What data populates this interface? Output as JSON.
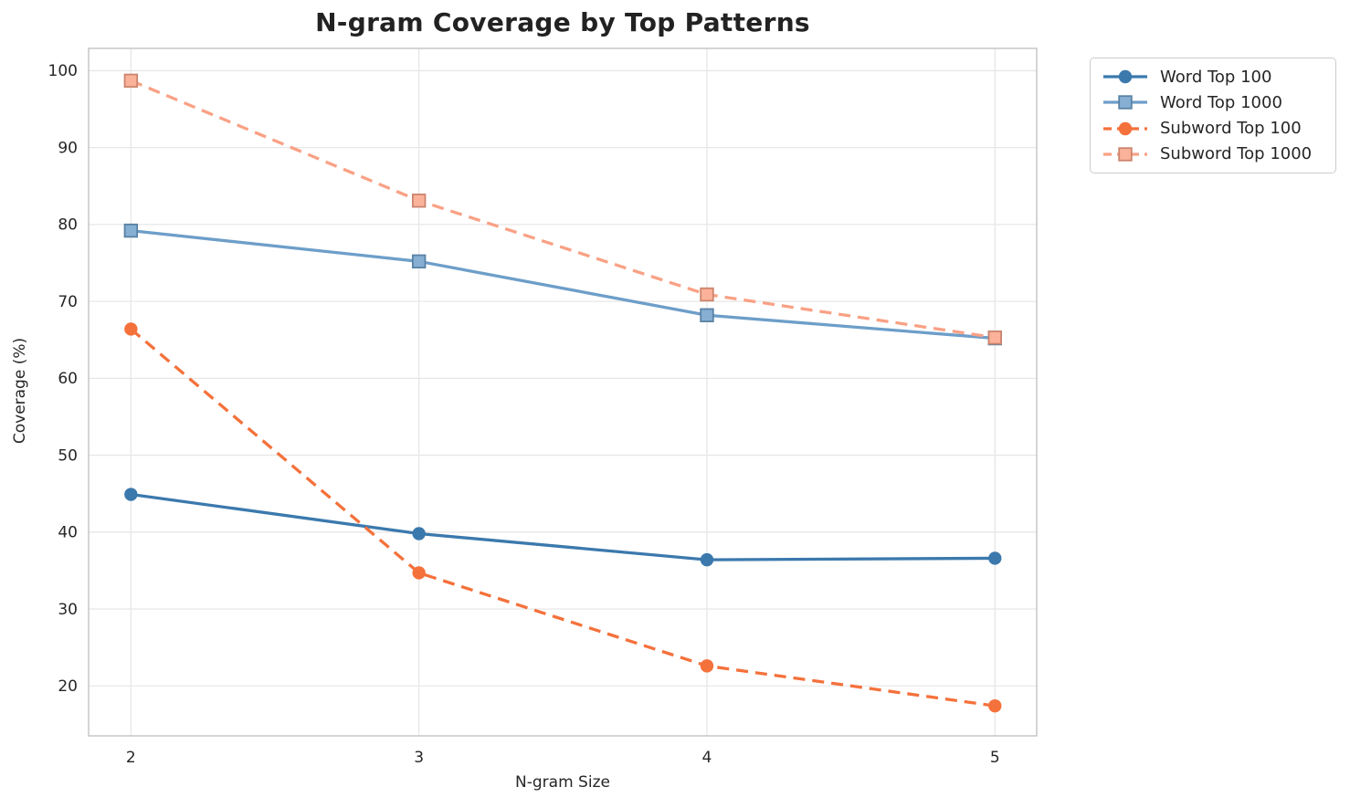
{
  "chart_data": {
    "type": "line",
    "title": "N-gram Coverage by Top Patterns",
    "xlabel": "N-gram Size",
    "ylabel": "Coverage (%)",
    "x": [
      2,
      3,
      4,
      5
    ],
    "x_tick_labels": [
      "2",
      "3",
      "4",
      "5"
    ],
    "y_ticks": [
      20,
      30,
      40,
      50,
      60,
      70,
      80,
      90,
      100
    ],
    "xlim": [
      1.853,
      5.145
    ],
    "ylim": [
      13.5,
      102.9
    ],
    "grid": true,
    "legend_position": "outside-upper-right",
    "series": [
      {
        "name": "Word Top 100",
        "values": [
          44.9,
          39.8,
          36.4,
          36.6
        ],
        "color": "#3b79ad",
        "line_style": "solid",
        "marker": "circle"
      },
      {
        "name": "Word Top 1000",
        "values": [
          79.2,
          75.2,
          68.2,
          65.2
        ],
        "color": "#6d9ec9",
        "line_style": "solid",
        "marker": "square"
      },
      {
        "name": "Subword Top 100",
        "values": [
          66.4,
          34.7,
          22.6,
          17.4
        ],
        "color": "#f4713b",
        "line_style": "dashed",
        "marker": "circle"
      },
      {
        "name": "Subword Top 1000",
        "values": [
          98.7,
          83.1,
          70.9,
          65.3
        ],
        "color": "#f9a185",
        "line_style": "dashed",
        "marker": "square"
      }
    ],
    "style": {
      "grid_color": "#e7e7e7",
      "spine_color": "#c3c3c3",
      "text_color": "#262626",
      "background": "#ffffff"
    }
  }
}
